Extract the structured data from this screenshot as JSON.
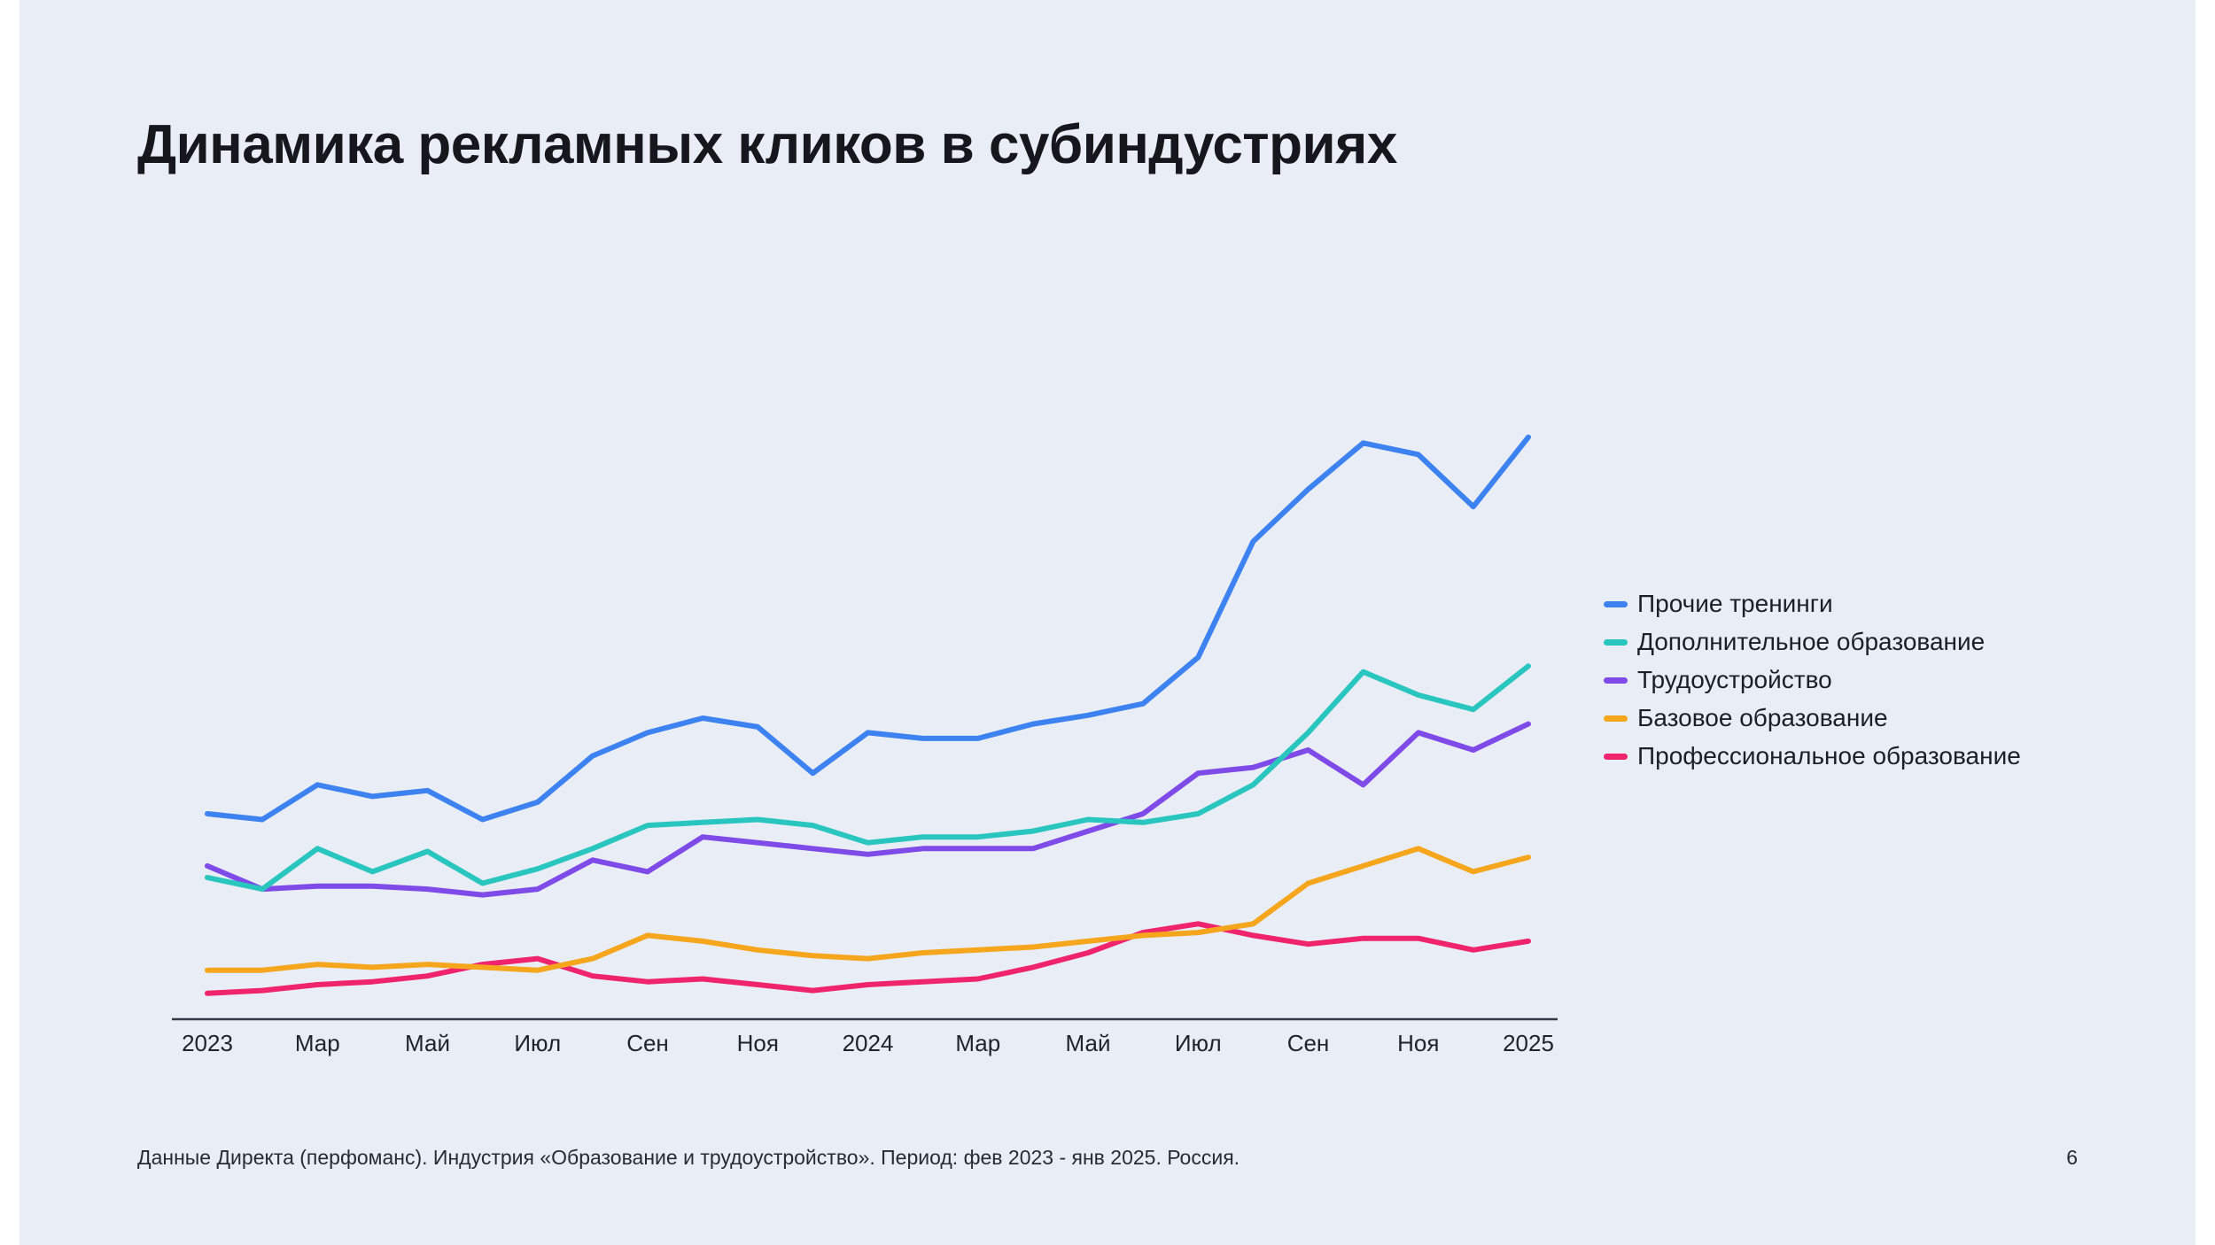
{
  "slide": {
    "title": "Динамика рекламных кликов в субиндустриях",
    "footer": "Данные Директа (перфоманс). Индустрия «Образование и трудоустройство». Период: фев 2023 - янв 2025. Россия.",
    "page_number": "6",
    "background_color": "#e9edf6"
  },
  "chart_data": {
    "type": "line",
    "title": "Динамика рекламных кликов в субиндустриях",
    "xlabel": "",
    "ylabel": "",
    "ylim": [
      0,
      105
    ],
    "grid": false,
    "legend_position": "right",
    "axis_color": "#343a45",
    "x_tick_labels": [
      "2023",
      "Мар",
      "Май",
      "Июл",
      "Сен",
      "Ноя",
      "2024",
      "Мар",
      "Май",
      "Июл",
      "Сен",
      "Ноя",
      "2025"
    ],
    "series": [
      {
        "name": "Прочие тренинги",
        "color": "#3c82f0",
        "values": [
          35,
          34,
          40,
          38,
          39,
          34,
          37,
          45,
          49,
          51.5,
          50,
          42,
          49,
          48,
          48,
          50.5,
          52,
          54,
          62,
          82,
          91,
          99,
          97,
          88,
          100
        ]
      },
      {
        "name": "Дополнительное образование",
        "color": "#29c6c0",
        "values": [
          24,
          22,
          29,
          25,
          28.5,
          23,
          25.5,
          29,
          33,
          33.5,
          34,
          33,
          30,
          31,
          31,
          32,
          34,
          33.5,
          35,
          40,
          49,
          59.5,
          55.5,
          53,
          60.5
        ]
      },
      {
        "name": "Трудоустройство",
        "color": "#7e4ae8",
        "values": [
          26,
          22,
          22.5,
          22.5,
          22,
          21,
          22,
          27,
          25,
          31,
          30,
          29,
          28,
          29,
          29,
          29,
          32,
          35,
          42,
          43,
          46,
          40,
          49,
          46,
          50.5
        ]
      },
      {
        "name": "Базовое образование",
        "color": "#f5a61d",
        "values": [
          8,
          8,
          9,
          8.5,
          9,
          8.5,
          8,
          10,
          14,
          13,
          11.5,
          10.5,
          10,
          11,
          11.5,
          12,
          13,
          14,
          14.5,
          16,
          23,
          26,
          29,
          25,
          27.5
        ]
      },
      {
        "name": "Профессиональное образование",
        "color": "#f0246d",
        "values": [
          4,
          4.5,
          5.5,
          6,
          7,
          9,
          10,
          7,
          6,
          6.5,
          5.5,
          4.5,
          5.5,
          6,
          6.5,
          8.5,
          11,
          14.5,
          16,
          14,
          12.5,
          13.5,
          13.5,
          11.5,
          13
        ]
      }
    ]
  }
}
